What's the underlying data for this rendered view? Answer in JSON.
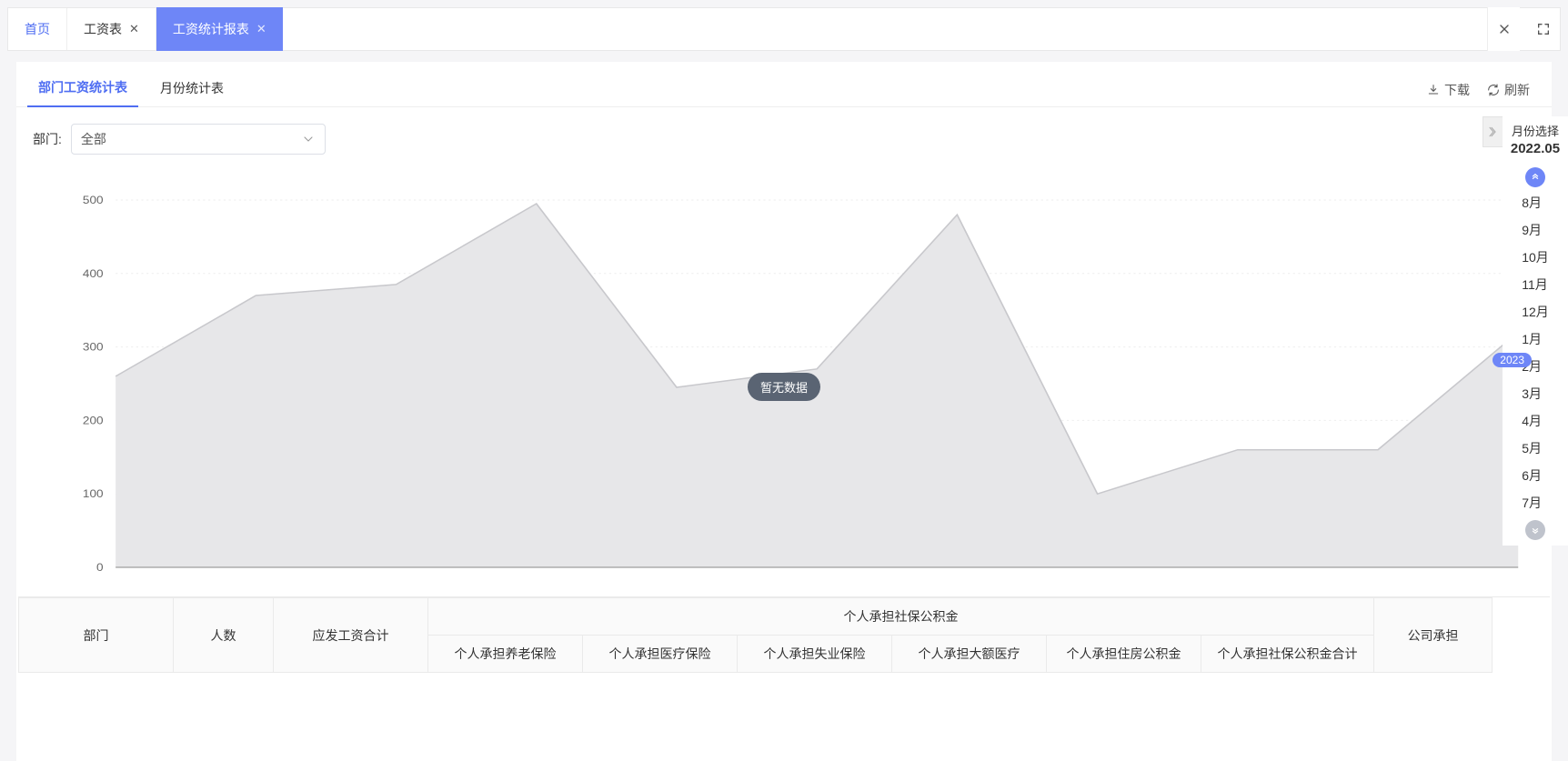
{
  "tabs": {
    "home": "首页",
    "payroll": "工资表",
    "stats": "工资统计报表"
  },
  "sub_tabs": {
    "dept": "部门工资统计表",
    "month": "月份统计表"
  },
  "actions": {
    "download": "下载",
    "refresh": "刷新"
  },
  "filter": {
    "dept_label": "部门:",
    "dept_value": "全部"
  },
  "chart": {
    "type": "area",
    "no_data_label": "暂无数据",
    "ylim": [
      0,
      500
    ],
    "ytick_step": 100,
    "yticks": [
      "0",
      "100",
      "200",
      "300",
      "400",
      "500"
    ],
    "fill_color": "#e7e7e9",
    "stroke_color": "#c8c8cc",
    "grid_color": "#eeeeee",
    "axis_text_color": "#666666",
    "background_color": "#ffffff",
    "values": [
      260,
      370,
      385,
      495,
      245,
      270,
      480,
      100,
      160,
      160,
      320
    ]
  },
  "table": {
    "group_header": "个人承担社保公积金",
    "columns_fixed": [
      "部门",
      "人数",
      "应发工资合计"
    ],
    "columns_group": [
      "个人承担养老保险",
      "个人承担医疗保险",
      "个人承担失业保险",
      "个人承担大额医疗",
      "个人承担住房公积金",
      "个人承担社保公积金合计"
    ],
    "column_trailing": "公司承担"
  },
  "month_panel": {
    "title": "月份选择",
    "current": "2022.05",
    "year_badge": "2023",
    "items": [
      "8月",
      "9月",
      "10月",
      "11月",
      "12月",
      "1月",
      "2月",
      "3月",
      "4月",
      "5月",
      "6月",
      "7月"
    ]
  }
}
